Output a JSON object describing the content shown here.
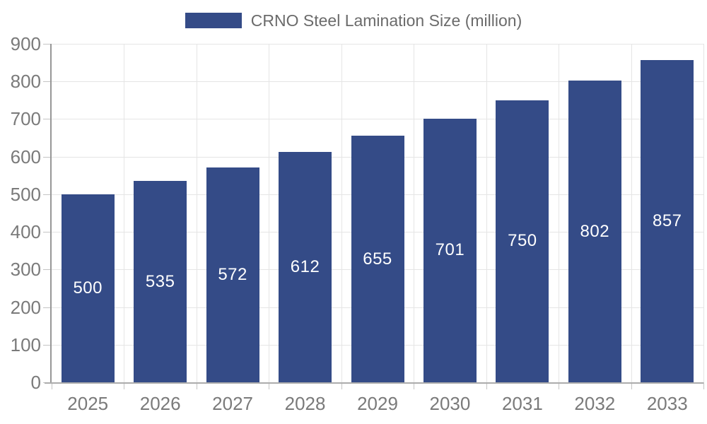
{
  "legend": {
    "label": "CRNO Steel Lamination Size (million)"
  },
  "chart_data": {
    "type": "bar",
    "title": "CRNO Steel Lamination Size (million)",
    "categories": [
      "2025",
      "2026",
      "2027",
      "2028",
      "2029",
      "2030",
      "2031",
      "2032",
      "2033"
    ],
    "values": [
      500,
      535,
      572,
      612,
      655,
      701,
      750,
      802,
      857
    ],
    "xlabel": "",
    "ylabel": "",
    "ylim": [
      0,
      900
    ],
    "yticks": [
      0,
      100,
      200,
      300,
      400,
      500,
      600,
      700,
      800,
      900
    ],
    "grid": true,
    "legend_position": "top",
    "value_label_position": "inside-center"
  },
  "colors": {
    "bar": "#344b87",
    "value_label": "#ffffff",
    "grid_line": "#e5e5e5",
    "x_axis_line": "#acacac",
    "y_axis_line": "#979797",
    "tick_mark": "#c4c4c4",
    "axis_text": "#7a7a7a",
    "legend_text": "#6b6b6b",
    "background": "#ffffff"
  }
}
